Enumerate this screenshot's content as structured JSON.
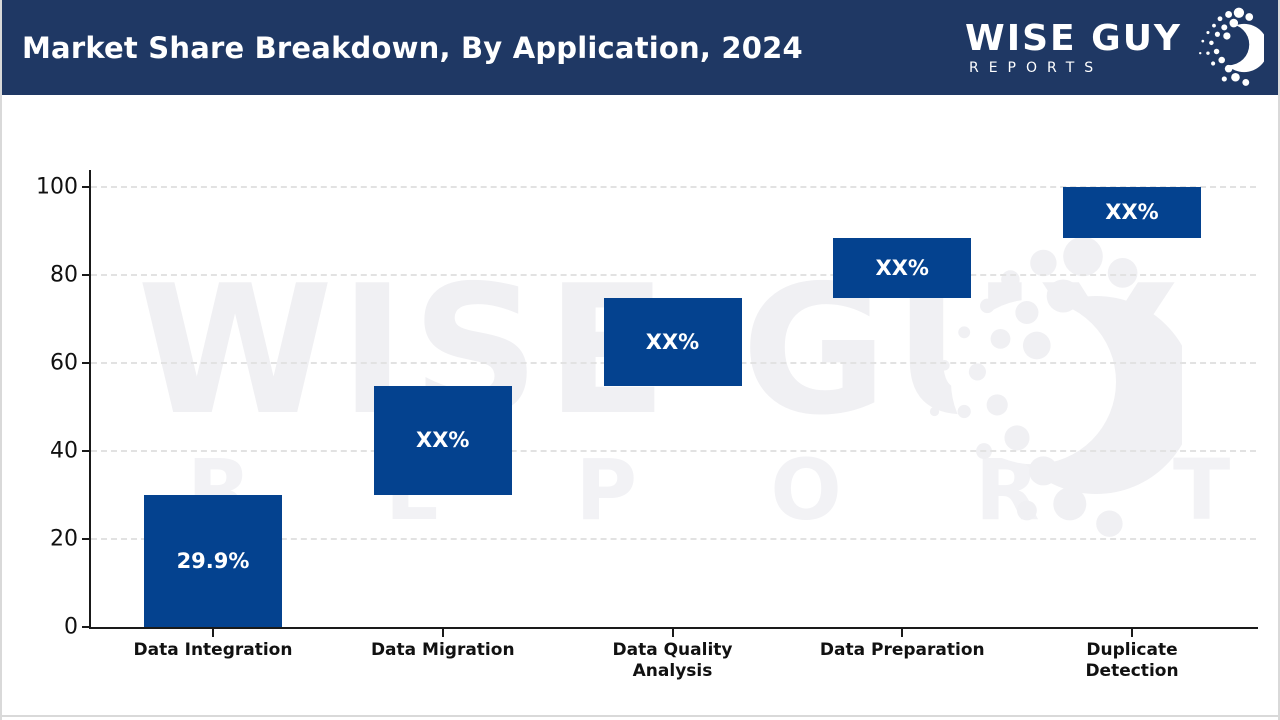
{
  "header": {
    "title": "Market Share Breakdown, By Application, 2024",
    "bg_color": "#1f3864",
    "logo": {
      "line1": "WISE GUY",
      "line2": "REPORTS"
    }
  },
  "watermark": {
    "line1": "WISE GUY",
    "line2": "R E P O R T S"
  },
  "chart_data": {
    "type": "bar",
    "variant": "waterfall",
    "title": "Market Share Breakdown, By Application, 2024",
    "categories": [
      "Data Integration",
      "Data Migration",
      "Data Quality Analysis",
      "Data Preparation",
      "Duplicate Detection"
    ],
    "category_lines": [
      [
        "Data Integration"
      ],
      [
        "Data Migration"
      ],
      [
        "Data Quality",
        "Analysis"
      ],
      [
        "Data Preparation"
      ],
      [
        "Duplicate",
        "Detection"
      ]
    ],
    "bars": [
      {
        "category": "Data Integration",
        "start": 0,
        "end": 29.9,
        "value": 29.9,
        "label": "29.9%"
      },
      {
        "category": "Data Migration",
        "start": 29.9,
        "end": 54.8,
        "value": 24.9,
        "label": "XX%"
      },
      {
        "category": "Data Quality Analysis",
        "start": 54.8,
        "end": 74.6,
        "value": 19.8,
        "label": "XX%"
      },
      {
        "category": "Data Preparation",
        "start": 74.6,
        "end": 88.3,
        "value": 13.7,
        "label": "XX%"
      },
      {
        "category": "Duplicate Detection",
        "start": 88.3,
        "end": 100,
        "value": 11.7,
        "label": "XX%"
      }
    ],
    "xlabel": "",
    "ylabel": "",
    "ylim": [
      0,
      100
    ],
    "yticks": [
      0,
      20,
      40,
      60,
      80,
      100
    ],
    "grid": "horizontal-dashed",
    "legend": "none",
    "bar_color": "#04428f",
    "bar_label_color": "#ffffff"
  }
}
